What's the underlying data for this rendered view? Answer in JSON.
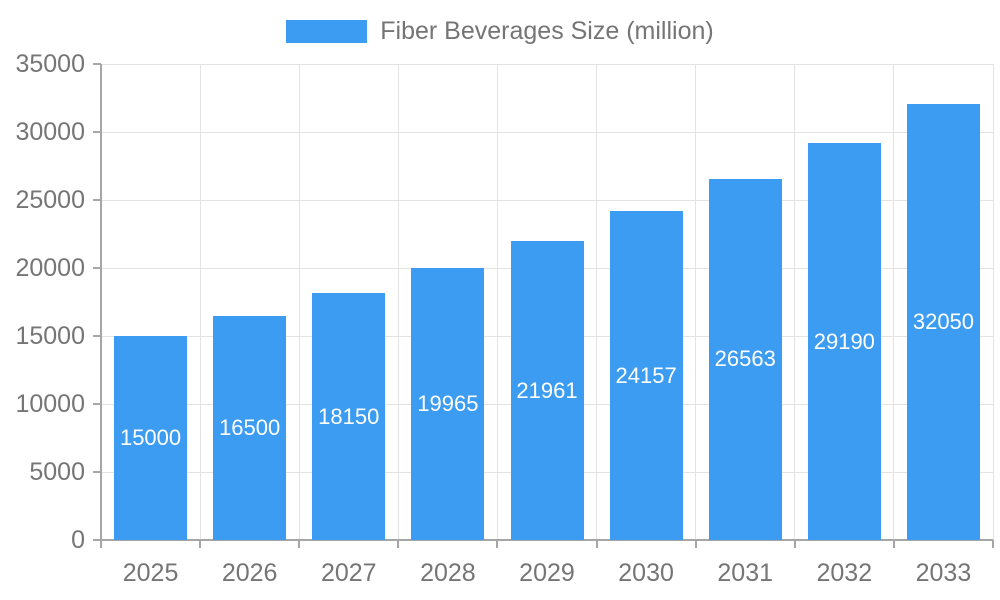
{
  "chart_data": {
    "type": "bar",
    "title": "",
    "legend": "Fiber Beverages Size (million)",
    "legend_position": "top-center",
    "categories": [
      "2025",
      "2026",
      "2027",
      "2028",
      "2029",
      "2030",
      "2031",
      "2032",
      "2033"
    ],
    "values": [
      15000,
      16500,
      18150,
      19965,
      21961,
      24157,
      26563,
      29190,
      32050
    ],
    "xlabel": "",
    "ylabel": "",
    "ylim": [
      0,
      35000
    ],
    "yticks": [
      0,
      5000,
      10000,
      15000,
      20000,
      25000,
      30000,
      35000
    ],
    "grid": "on",
    "value_labels": "inside-middle"
  },
  "colors": {
    "bar_fill": "#3B9CF2",
    "value_label_text": "#FFFFFF",
    "axis_label_text": "#757575",
    "legend_text": "#757575",
    "grid_line": "#E3E3E3",
    "axis_line": "#A6A6A6",
    "background": "#FFFFFF"
  }
}
